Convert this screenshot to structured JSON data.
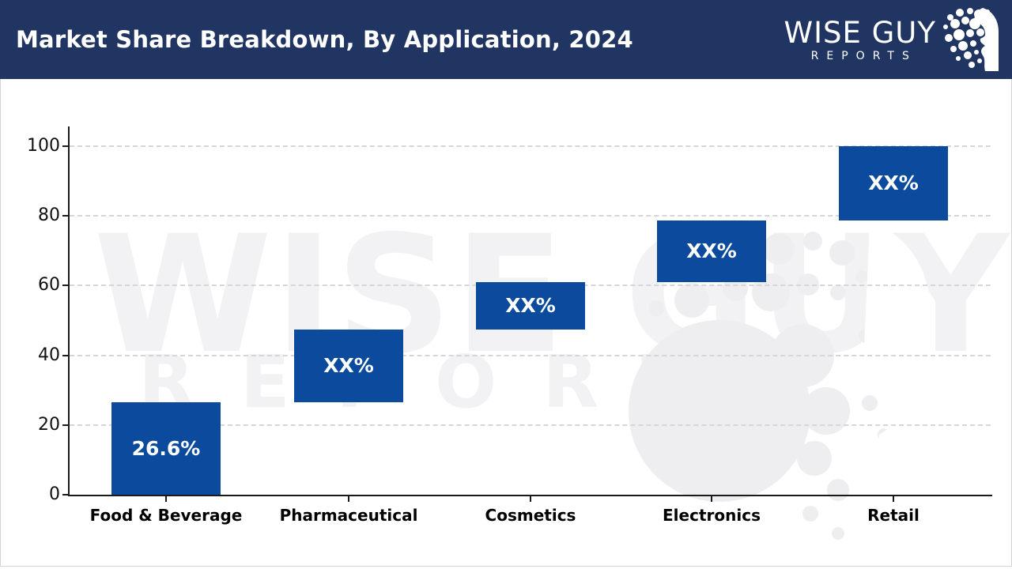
{
  "header": {
    "title": "Market Share Breakdown, By Application, 2024",
    "logo": {
      "line1": "WISE GUY",
      "line2": "REPORTS"
    }
  },
  "watermark": {
    "line1": "WISE GUY",
    "line2": "REPORTS"
  },
  "colors": {
    "header_bg": "#213563",
    "bar": "#0b4a9d",
    "bar_label": "#ffffff",
    "grid": "#d6d6d6",
    "axis": "#1a1a1a",
    "frame_border": "#d5d5d8",
    "watermark": "#f2f2f4"
  },
  "chart_data": {
    "type": "bar",
    "subtype": "floating-waterfall",
    "title": "Market Share Breakdown, By Application, 2024",
    "categories": [
      "Food & Beverage",
      "Pharmaceutical",
      "Cosmetics",
      "Electronics",
      "Retail"
    ],
    "bars": [
      {
        "category": "Food & Beverage",
        "start": 0,
        "end": 26.6,
        "label": "26.6%"
      },
      {
        "category": "Pharmaceutical",
        "start": 26.6,
        "end": 47.5,
        "label": "XX%"
      },
      {
        "category": "Cosmetics",
        "start": 47.5,
        "end": 61,
        "label": "XX%"
      },
      {
        "category": "Electronics",
        "start": 61,
        "end": 78.7,
        "label": "XX%"
      },
      {
        "category": "Retail",
        "start": 78.7,
        "end": 100,
        "label": "XX%"
      }
    ],
    "ylim": [
      0,
      100
    ],
    "yticks": [
      0,
      20,
      40,
      60,
      80,
      100
    ],
    "xlabel": "",
    "ylabel": "",
    "grid": "horizontal-dashed",
    "legend": "none"
  }
}
